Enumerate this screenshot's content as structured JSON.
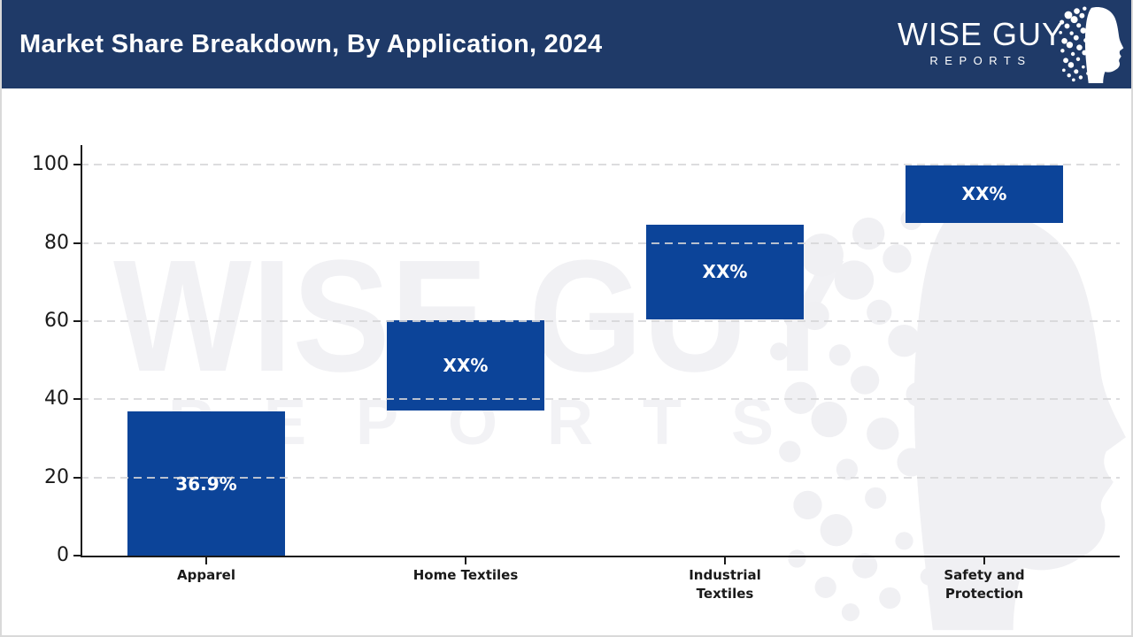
{
  "header": {
    "title": "Market Share Breakdown, By Application, 2024",
    "background_color": "#1f3a68",
    "logo": {
      "line1": "WISE GUY",
      "line2": "REPORTS"
    }
  },
  "watermark": {
    "line1": "WISE GUY",
    "line2": "REPORTS"
  },
  "chart_data": {
    "type": "bar",
    "subtype": "waterfall-segments",
    "title": "Market Share Breakdown, By Application, 2024",
    "categories": [
      "Apparel",
      "Home Textiles",
      "Industrial Textiles",
      "Safety and Protection"
    ],
    "tick_lines": [
      [
        "Apparel"
      ],
      [
        "Home Textiles"
      ],
      [
        "Industrial",
        "Textiles"
      ],
      [
        "Safety and",
        "Protection"
      ]
    ],
    "segments": [
      {
        "category": "Apparel",
        "start": 0,
        "end": 36.9,
        "label": "36.9%"
      },
      {
        "category": "Home Textiles",
        "start": 37.2,
        "end": 60.2,
        "label": "XX%"
      },
      {
        "category": "Industrial Textiles",
        "start": 60.5,
        "end": 84.7,
        "label": "XX%"
      },
      {
        "category": "Safety and Protection",
        "start": 85.2,
        "end": 99.9,
        "label": "XX%"
      }
    ],
    "yticks": [
      0,
      20,
      40,
      60,
      80,
      100
    ],
    "ylim": [
      0,
      105
    ],
    "grid": true,
    "grid_style": "dashed",
    "legend": false,
    "bar_color": "#0c4499",
    "bar_label_color": "#ffffff",
    "axis_color": "#1a1a1a",
    "gridline_color": "#d6d6d8",
    "watermark_color": "#f0f0f3"
  }
}
